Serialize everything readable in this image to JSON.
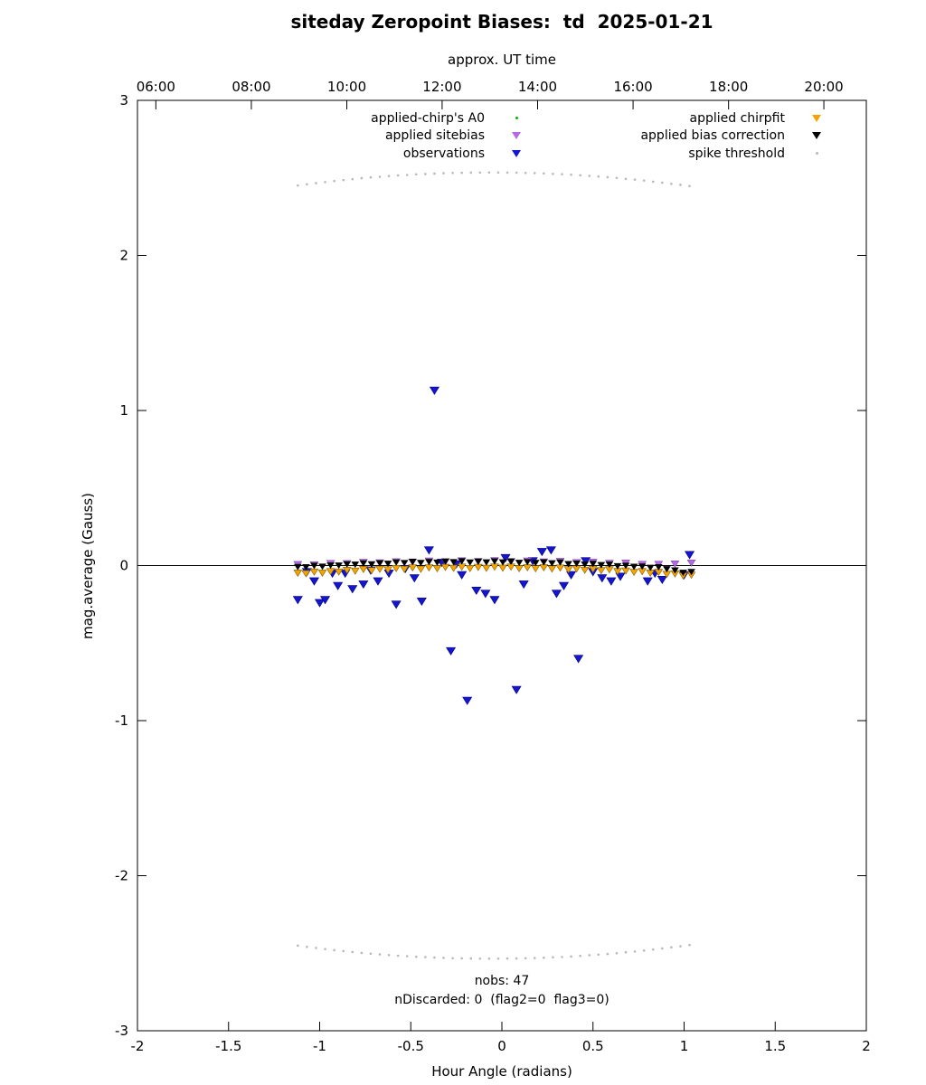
{
  "chart_data": {
    "type": "scatter",
    "title": "siteday Zeropoint Biases:  td  2025-01-21",
    "x2label": "approx. UT time",
    "xlabel": "Hour Angle (radians)",
    "ylabel": "mag.average (Gauss)",
    "xlim": [
      -2,
      2
    ],
    "ylim": [
      -3,
      3
    ],
    "xticks": [
      -2,
      -1.5,
      -1,
      -0.5,
      0,
      0.5,
      1,
      1.5,
      2
    ],
    "yticks": [
      -3,
      -2,
      -1,
      0,
      1,
      2,
      3
    ],
    "x2ticks": [
      {
        "label": "06:00",
        "x": -1.899
      },
      {
        "label": "08:00",
        "x": -1.375
      },
      {
        "label": "10:00",
        "x": -0.851
      },
      {
        "label": "12:00",
        "x": -0.328
      },
      {
        "label": "14:00",
        "x": 0.196
      },
      {
        "label": "16:00",
        "x": 0.72
      },
      {
        "label": "18:00",
        "x": 1.244
      },
      {
        "label": "20:00",
        "x": 1.767
      }
    ],
    "zero_line": true,
    "grid": false,
    "legend_position": "top-inside-two-columns",
    "annotations": [
      "nobs: 47",
      "nDiscarded: 0  (flag2=0  flag3=0)"
    ],
    "nobs": 47,
    "nDiscarded": 0,
    "colors": {
      "chirp_a0": "#00b400",
      "chirpfit": "#f5a300",
      "sitebias": "#b36ae2",
      "bias_correction": "#000000",
      "observations": "#1515cd",
      "spike_threshold": "#b8b8b8"
    },
    "legend": {
      "left": [
        {
          "label": "applied-chirp's A0",
          "marker": "dot",
          "color": "#00b400",
          "size": 3
        },
        {
          "label": "applied sitebias",
          "marker": "triangle-down",
          "color": "#b36ae2"
        },
        {
          "label": "observations",
          "marker": "triangle-down",
          "color": "#1515cd"
        }
      ],
      "right": [
        {
          "label": "applied chirpfit",
          "marker": "triangle-down",
          "color": "#f5a300"
        },
        {
          "label": "applied bias correction",
          "marker": "triangle-down",
          "color": "#000000"
        },
        {
          "label": "spike threshold",
          "marker": "dot",
          "color": "#b8b8b8",
          "size": 3
        }
      ]
    },
    "series": [
      {
        "id": "spike-threshold-upper",
        "name": "spike threshold (upper arc)",
        "marker": "dot",
        "color": "#b8b8b8",
        "r": 1.3,
        "x": [
          -1.12,
          -1.07,
          -1.02,
          -0.97,
          -0.92,
          -0.87,
          -0.82,
          -0.77,
          -0.72,
          -0.67,
          -0.62,
          -0.57,
          -0.52,
          -0.47,
          -0.42,
          -0.37,
          -0.32,
          -0.27,
          -0.22,
          -0.17,
          -0.12,
          -0.07,
          -0.02,
          0.03,
          0.08,
          0.13,
          0.18,
          0.23,
          0.28,
          0.33,
          0.38,
          0.43,
          0.48,
          0.53,
          0.58,
          0.63,
          0.68,
          0.73,
          0.78,
          0.83,
          0.88,
          0.93,
          0.98,
          1.03
        ],
        "y": [
          2.451,
          2.459,
          2.466,
          2.473,
          2.48,
          2.486,
          2.492,
          2.498,
          2.503,
          2.507,
          2.512,
          2.516,
          2.519,
          2.523,
          2.525,
          2.528,
          2.53,
          2.532,
          2.533,
          2.534,
          2.535,
          2.535,
          2.535,
          2.534,
          2.534,
          2.532,
          2.531,
          2.529,
          2.526,
          2.524,
          2.521,
          2.517,
          2.513,
          2.509,
          2.505,
          2.5,
          2.494,
          2.489,
          2.483,
          2.476,
          2.469,
          2.462,
          2.455,
          2.447
        ]
      },
      {
        "id": "spike-threshold-lower",
        "name": "spike threshold (lower arc)",
        "marker": "dot",
        "color": "#b8b8b8",
        "r": 1.3,
        "x": [
          -1.12,
          -1.07,
          -1.02,
          -0.97,
          -0.92,
          -0.87,
          -0.82,
          -0.77,
          -0.72,
          -0.67,
          -0.62,
          -0.57,
          -0.52,
          -0.47,
          -0.42,
          -0.37,
          -0.32,
          -0.27,
          -0.22,
          -0.17,
          -0.12,
          -0.07,
          -0.02,
          0.03,
          0.08,
          0.13,
          0.18,
          0.23,
          0.28,
          0.33,
          0.38,
          0.43,
          0.48,
          0.53,
          0.58,
          0.63,
          0.68,
          0.73,
          0.78,
          0.83,
          0.88,
          0.93,
          0.98,
          1.03
        ],
        "y": [
          -2.451,
          -2.459,
          -2.466,
          -2.473,
          -2.48,
          -2.486,
          -2.492,
          -2.498,
          -2.503,
          -2.507,
          -2.512,
          -2.516,
          -2.519,
          -2.523,
          -2.525,
          -2.528,
          -2.53,
          -2.532,
          -2.533,
          -2.534,
          -2.535,
          -2.535,
          -2.535,
          -2.534,
          -2.534,
          -2.532,
          -2.531,
          -2.529,
          -2.526,
          -2.524,
          -2.521,
          -2.517,
          -2.513,
          -2.509,
          -2.505,
          -2.5,
          -2.494,
          -2.489,
          -2.483,
          -2.476,
          -2.469,
          -2.462,
          -2.455,
          -2.447
        ]
      },
      {
        "id": "observations",
        "name": "observations",
        "marker": "triangle-down",
        "color": "#1515cd",
        "stroke": "#000080",
        "hw": 5,
        "hh": 8.2,
        "x": [
          -1.12,
          -1.07,
          -1.03,
          -1.0,
          -0.97,
          -0.93,
          -0.9,
          -0.86,
          -0.82,
          -0.76,
          -0.72,
          -0.68,
          -0.62,
          -0.58,
          -0.53,
          -0.48,
          -0.44,
          -0.4,
          -0.37,
          -0.33,
          -0.28,
          -0.25,
          -0.22,
          -0.19,
          -0.14,
          -0.09,
          -0.04,
          0.02,
          0.08,
          0.12,
          0.17,
          0.22,
          0.27,
          0.3,
          0.34,
          0.38,
          0.42,
          0.46,
          0.5,
          0.55,
          0.6,
          0.65,
          0.8,
          0.84,
          0.88,
          1.0,
          1.03
        ],
        "y": [
          -0.22,
          -0.04,
          -0.1,
          -0.24,
          -0.22,
          -0.05,
          -0.13,
          -0.05,
          -0.15,
          -0.12,
          -0.03,
          -0.1,
          -0.05,
          -0.25,
          -0.02,
          -0.08,
          -0.23,
          0.1,
          1.13,
          0.02,
          -0.55,
          0.01,
          -0.06,
          -0.87,
          -0.16,
          -0.18,
          -0.22,
          0.05,
          -0.8,
          -0.12,
          0.03,
          0.09,
          0.1,
          -0.18,
          -0.13,
          -0.06,
          -0.6,
          0.03,
          -0.04,
          -0.08,
          -0.1,
          -0.07,
          -0.1,
          -0.05,
          -0.09,
          -0.06,
          0.07
        ]
      },
      {
        "id": "applied-sitebias",
        "name": "applied sitebias",
        "marker": "triangle-down",
        "color": "#b36ae2",
        "stroke": "#8040b0",
        "hw": 4.3,
        "hh": 7,
        "x": [
          -1.12,
          -1.03,
          -0.94,
          -0.85,
          -0.76,
          -0.67,
          -0.58,
          -0.49,
          -0.4,
          -0.31,
          -0.22,
          -0.13,
          -0.04,
          0.05,
          0.14,
          0.23,
          0.32,
          0.41,
          0.5,
          0.59,
          0.68,
          0.77,
          0.86,
          0.95,
          1.04
        ],
        "y": [
          0.008,
          0.006,
          0.015,
          0.014,
          0.022,
          0.019,
          0.026,
          0.024,
          0.031,
          0.026,
          0.032,
          0.028,
          0.033,
          0.027,
          0.031,
          0.025,
          0.029,
          0.021,
          0.023,
          0.016,
          0.018,
          0.009,
          0.01,
          0.012,
          0.018
        ]
      },
      {
        "id": "applied-chirpfit",
        "name": "applied chirpfit",
        "marker": "triangle-down",
        "color": "#f5a300",
        "stroke": "#806000",
        "hw": 4.3,
        "hh": 7,
        "x": [
          -1.12,
          -1.075,
          -1.03,
          -0.985,
          -0.94,
          -0.895,
          -0.85,
          -0.805,
          -0.76,
          -0.715,
          -0.67,
          -0.625,
          -0.58,
          -0.535,
          -0.49,
          -0.445,
          -0.4,
          -0.355,
          -0.31,
          -0.265,
          -0.22,
          -0.175,
          -0.13,
          -0.085,
          -0.04,
          0.005,
          0.05,
          0.095,
          0.14,
          0.185,
          0.23,
          0.275,
          0.32,
          0.365,
          0.41,
          0.455,
          0.5,
          0.545,
          0.59,
          0.635,
          0.68,
          0.725,
          0.77,
          0.815,
          0.86,
          0.905,
          0.95,
          0.995,
          1.04
        ],
        "y": [
          -0.047,
          -0.051,
          -0.04,
          -0.047,
          -0.037,
          -0.04,
          -0.029,
          -0.034,
          -0.023,
          -0.031,
          -0.022,
          -0.026,
          -0.017,
          -0.022,
          -0.013,
          -0.022,
          -0.013,
          -0.018,
          -0.01,
          -0.016,
          -0.008,
          -0.017,
          -0.01,
          -0.016,
          -0.008,
          -0.015,
          -0.008,
          -0.018,
          -0.012,
          -0.019,
          -0.012,
          -0.02,
          -0.014,
          -0.025,
          -0.02,
          -0.028,
          -0.022,
          -0.031,
          -0.025,
          -0.037,
          -0.033,
          -0.042,
          -0.037,
          -0.047,
          -0.042,
          -0.055,
          -0.052,
          -0.065,
          -0.06
        ]
      },
      {
        "id": "applied-bias-correction",
        "name": "applied bias correction",
        "marker": "triangle-down",
        "color": "#000000",
        "stroke": "none",
        "hw": 4.3,
        "hh": 7,
        "x": [
          -1.12,
          -1.075,
          -1.03,
          -0.985,
          -0.94,
          -0.895,
          -0.85,
          -0.805,
          -0.76,
          -0.715,
          -0.67,
          -0.625,
          -0.58,
          -0.535,
          -0.49,
          -0.445,
          -0.4,
          -0.355,
          -0.31,
          -0.265,
          -0.22,
          -0.175,
          -0.13,
          -0.085,
          -0.04,
          0.005,
          0.05,
          0.095,
          0.14,
          0.185,
          0.23,
          0.275,
          0.32,
          0.365,
          0.41,
          0.455,
          0.5,
          0.545,
          0.59,
          0.635,
          0.68,
          0.725,
          0.77,
          0.815,
          0.86,
          0.905,
          0.95,
          0.995,
          1.04
        ],
        "y": [
          -0.008,
          -0.01,
          -0.001,
          -0.006,
          0.002,
          0.001,
          0.009,
          0.007,
          0.015,
          0.009,
          0.016,
          0.013,
          0.021,
          0.017,
          0.025,
          0.018,
          0.024,
          0.02,
          0.027,
          0.023,
          0.029,
          0.021,
          0.026,
          0.022,
          0.028,
          0.022,
          0.027,
          0.019,
          0.023,
          0.018,
          0.022,
          0.016,
          0.021,
          0.011,
          0.014,
          0.008,
          0.012,
          0.004,
          0.008,
          -0.003,
          0.0,
          -0.007,
          -0.005,
          -0.013,
          -0.01,
          -0.022,
          -0.03,
          -0.045,
          -0.04
        ]
      },
      {
        "id": "applied-chirp-a0",
        "name": "applied-chirp's A0",
        "marker": "dot",
        "color": "#00b400",
        "r": 1.5,
        "x": [],
        "y": []
      }
    ]
  }
}
